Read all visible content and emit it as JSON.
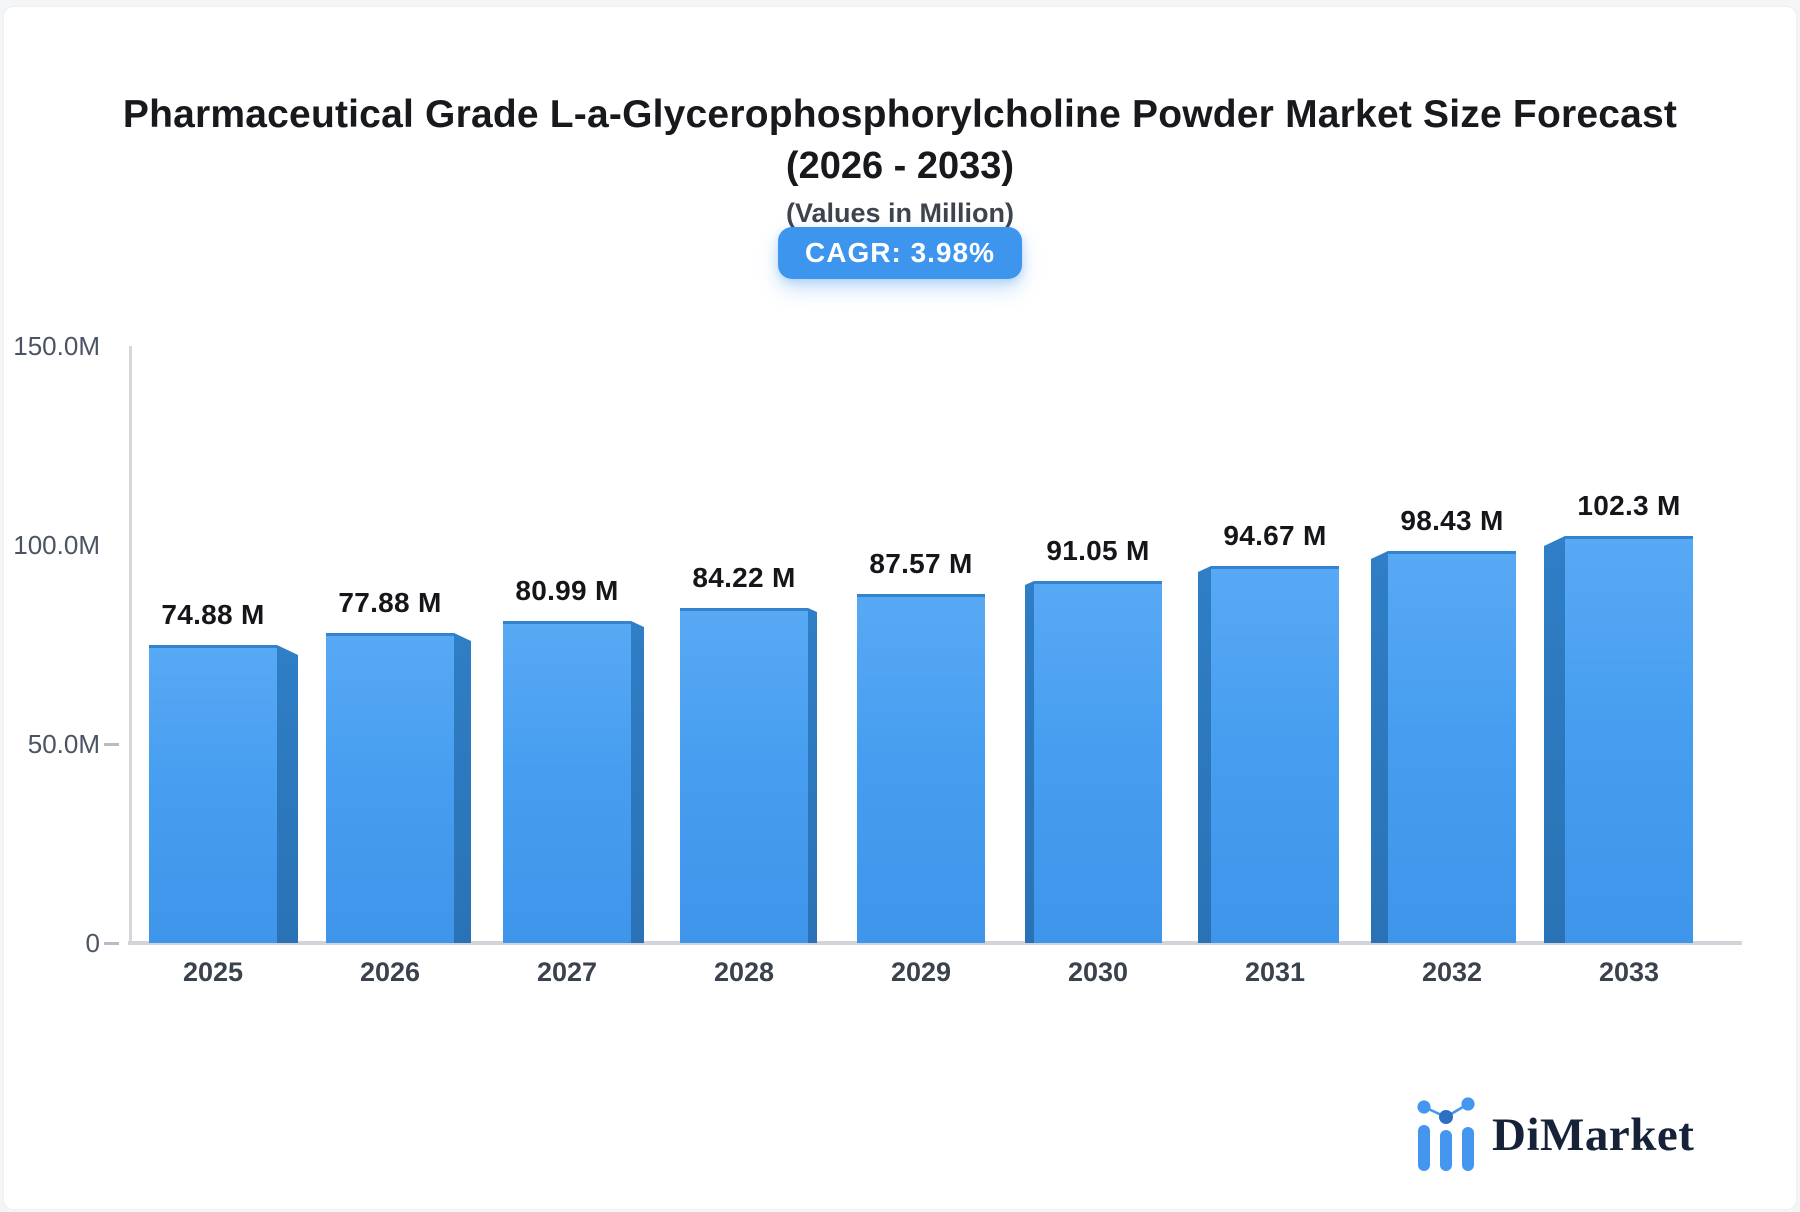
{
  "header": {
    "title_line1": "Pharmaceutical Grade L-a-Glycerophosphorylcholine Powder Market Size Forecast",
    "title_line2": "(2026 - 2033)",
    "subtitle": "(Values in Million)",
    "cagr_badge": "CAGR: 3.98%",
    "badge_color": "#3d95ee"
  },
  "chart_data": {
    "type": "bar",
    "title": "Pharmaceutical Grade L-a-Glycerophosphorylcholine Powder Market Size Forecast (2026 - 2033)",
    "subtitle": "(Values in Million)",
    "unit": "Million",
    "cagr_percent": 3.98,
    "categories": [
      "2025",
      "2026",
      "2027",
      "2028",
      "2029",
      "2030",
      "2031",
      "2032",
      "2033"
    ],
    "values": [
      74.88,
      77.88,
      80.99,
      84.22,
      87.57,
      91.05,
      94.67,
      98.43,
      102.3
    ],
    "value_labels": [
      "74.88 M",
      "77.88 M",
      "80.99 M",
      "84.22 M",
      "87.57 M",
      "91.05 M",
      "94.67 M",
      "98.43 M",
      "102.3 M"
    ],
    "ylim": [
      0,
      150
    ],
    "yticks": [
      {
        "value": 150,
        "label": "150.0M",
        "dash": false
      },
      {
        "value": 100,
        "label": "100.0M",
        "dash": false
      },
      {
        "value": 50,
        "label": "50.0M",
        "dash": true
      },
      {
        "value": 0,
        "label": "0",
        "dash": true
      }
    ],
    "grid": false,
    "legend": false,
    "bar_color": "#459def",
    "bar_side_color": "#2b74b9",
    "effect": "3d-center-perspective"
  },
  "logo": {
    "text": "DiMarket",
    "icon": "bar-chart-trend-icon",
    "icon_color": "#4496ef",
    "mid_dot_color": "#2f6fc2",
    "text_color": "#152238"
  }
}
